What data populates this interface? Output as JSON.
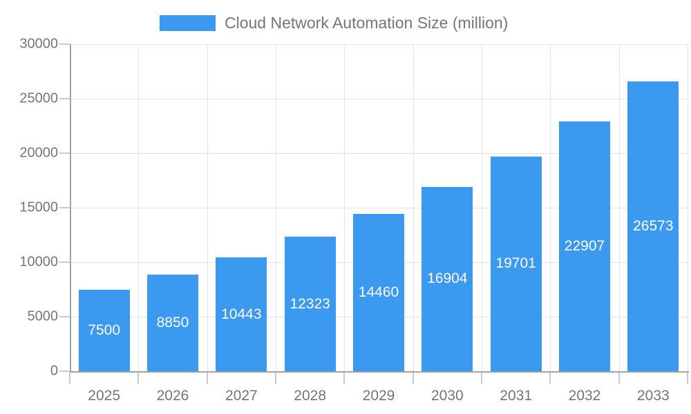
{
  "legend": {
    "label": "Cloud Network Automation Size (million)"
  },
  "chart_data": {
    "type": "bar",
    "title": "Cloud Network Automation Size (million)",
    "categories": [
      "2025",
      "2026",
      "2027",
      "2028",
      "2029",
      "2030",
      "2031",
      "2032",
      "2033"
    ],
    "values": [
      7500,
      8850,
      10443,
      12323,
      14460,
      16904,
      19701,
      22907,
      26573
    ],
    "xlabel": "",
    "ylabel": "",
    "ylim": [
      0,
      30000
    ],
    "yticks": [
      0,
      5000,
      10000,
      15000,
      20000,
      25000,
      30000
    ],
    "grid": true,
    "legend_position": "top",
    "value_labels": "inside-center"
  },
  "colors": {
    "bar": "#3B99F0",
    "grid": "#E4E4E4",
    "axis": "#A2A2A2",
    "tick": "#C9C9C9",
    "label_text": "#757575",
    "value_text": "#FFFFFF",
    "background": "#FFFFFF"
  }
}
